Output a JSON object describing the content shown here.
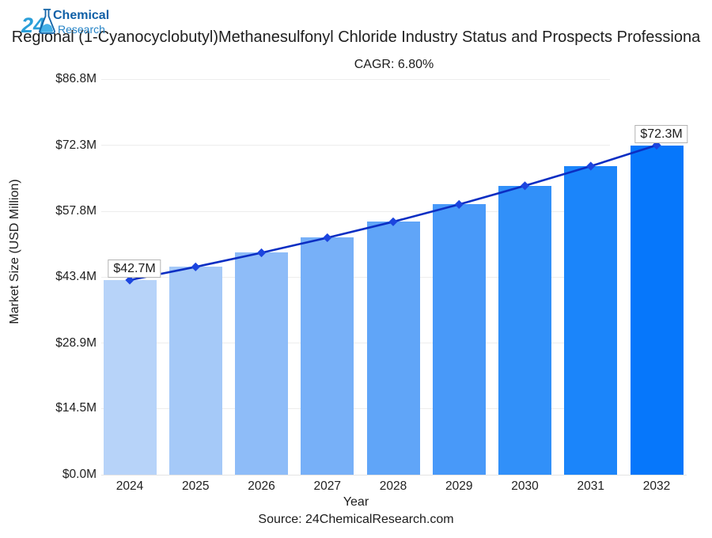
{
  "logo": {
    "number": "24",
    "name_top": "Chemical",
    "name_bottom": "Research",
    "number_color": "#2b9fd9",
    "name_top_color": "#1060a7",
    "name_bottom_color": "#2583c6",
    "flask_outline_color": "#1565a8",
    "flask_liquid_color": "#45b1e8"
  },
  "footer": {
    "source": "Source: 24ChemicalResearch.com"
  },
  "chart_data": {
    "type": "bar",
    "title": "Regional (1-Cyanocyclobutyl)Methanesulfonyl Chloride Industry Status and Prospects Professiona",
    "subtitle": "CAGR: 6.80%",
    "categories": [
      "2024",
      "2025",
      "2026",
      "2027",
      "2028",
      "2029",
      "2030",
      "2031",
      "2032"
    ],
    "series": [
      {
        "name": "Market Size (bars)",
        "type": "bar",
        "values": [
          42.7,
          45.6,
          48.7,
          52.0,
          55.5,
          59.3,
          63.4,
          67.7,
          72.3
        ]
      },
      {
        "name": "Market Size (trend line)",
        "type": "line",
        "values": [
          42.7,
          45.6,
          48.7,
          52.0,
          55.5,
          59.3,
          63.4,
          67.7,
          72.3
        ]
      }
    ],
    "xlabel": "Year",
    "ylabel": "Market Size (USD Million)",
    "ylim": [
      0,
      86.8
    ],
    "ytick_values": [
      0,
      14.5,
      28.9,
      43.4,
      57.8,
      72.3,
      86.8
    ],
    "ytick_labels": [
      "$0.0M",
      "$14.5M",
      "$28.9M",
      "$43.4M",
      "$57.8M",
      "$72.3M",
      "$86.8M"
    ],
    "grid": "horizontal",
    "legend": "none",
    "point_labels": [
      {
        "index": 0,
        "text": "$42.7M"
      },
      {
        "index": 8,
        "text": "$72.3M"
      }
    ],
    "bar_colors": [
      "#b7d3f9",
      "#a5c9f8",
      "#8ebcf8",
      "#77b0f8",
      "#60a5f8",
      "#4899f9",
      "#3190f9",
      "#1b85fa",
      "#0677fb"
    ],
    "line_color": "#0b2ec3",
    "marker_color": "#1c45df"
  }
}
